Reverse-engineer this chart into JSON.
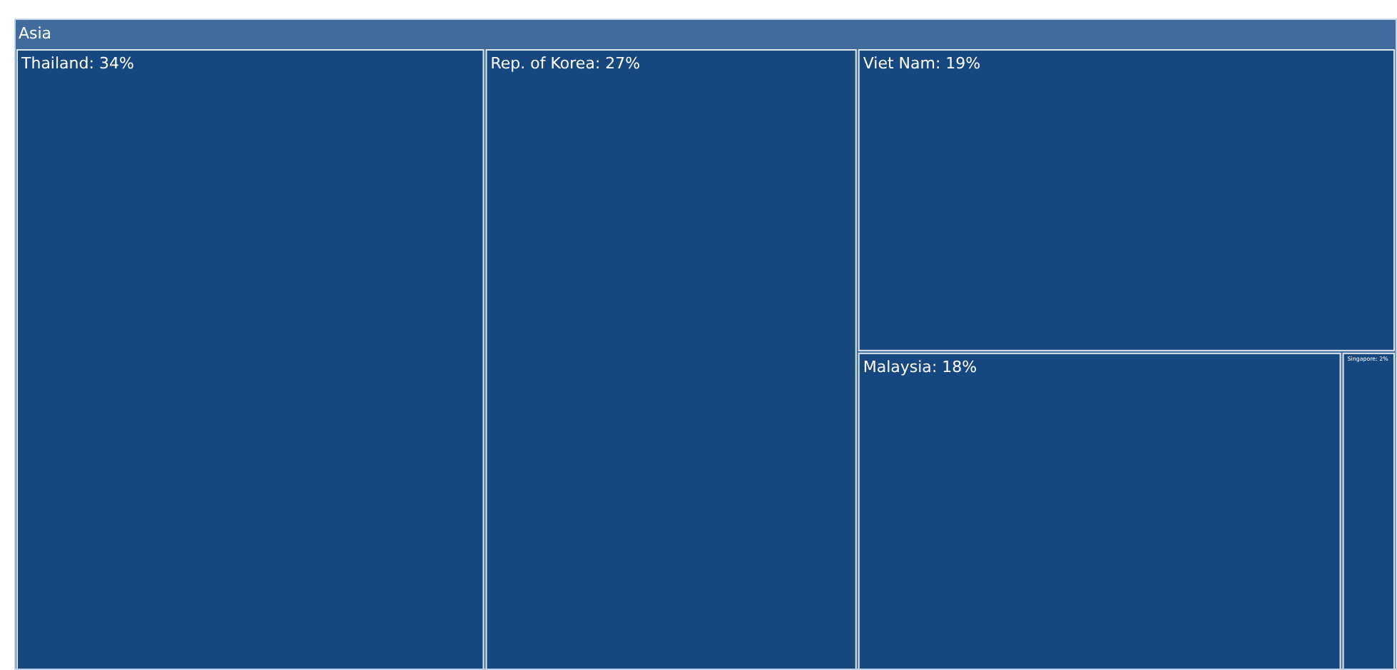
{
  "chart_data": {
    "type": "other",
    "title": "Asia",
    "categories": [
      "Thailand",
      "Rep. of Korea",
      "Viet Nam",
      "Malaysia",
      "Singapore"
    ],
    "value_labels": [
      ": 34%",
      ": 27%",
      ": 19%",
      ": 18%",
      ": 2%"
    ],
    "values": [
      34,
      27,
      19,
      18,
      2
    ],
    "colors": [
      "#16477f",
      "#16477f",
      "#16477f",
      "#16477f",
      "#16477f"
    ]
  }
}
